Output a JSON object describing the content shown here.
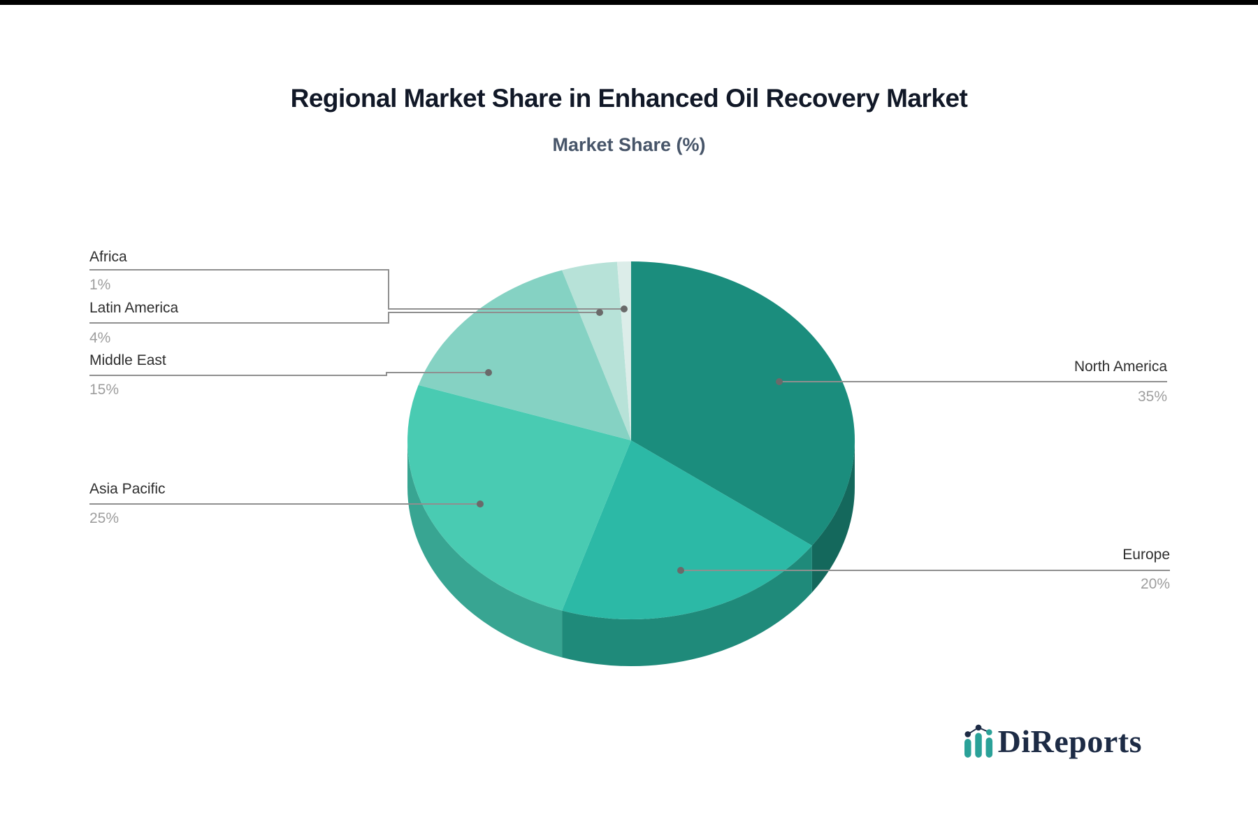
{
  "page": {
    "title": "Regional Market Share in Enhanced Oil Recovery Market",
    "subtitle": "Market Share (%)"
  },
  "chart_data": {
    "type": "pie",
    "style": "3d",
    "title": "Regional Market Share in Enhanced Oil Recovery Market",
    "subtitle": "Market Share (%)",
    "unit": "%",
    "start_angle_deg": 90,
    "direction": "clockwise",
    "slices": [
      {
        "label": "North America",
        "value": 35,
        "color": "#1b8d7d",
        "side_color": "#14685c",
        "label_side": "right"
      },
      {
        "label": "Europe",
        "value": 20,
        "color": "#2cb9a6",
        "side_color": "#1f8a7a",
        "label_side": "right"
      },
      {
        "label": "Asia Pacific",
        "value": 25,
        "color": "#49cbb2",
        "side_color": "#38a592",
        "label_side": "left"
      },
      {
        "label": "Middle East",
        "value": 15,
        "color": "#85d2c3",
        "side_color": "#85d2c3",
        "label_side": "left"
      },
      {
        "label": "Latin America",
        "value": 4,
        "color": "#b7e2d8",
        "side_color": "#b7e2d8",
        "label_side": "left"
      },
      {
        "label": "Africa",
        "value": 1,
        "color": "#dcede9",
        "side_color": "#dcede9",
        "label_side": "left"
      }
    ]
  },
  "callouts": {
    "africa": {
      "name": "Africa",
      "pct": "1%"
    },
    "latin_america": {
      "name": "Latin America",
      "pct": "4%"
    },
    "middle_east": {
      "name": "Middle East",
      "pct": "15%"
    },
    "asia_pacific": {
      "name": "Asia Pacific",
      "pct": "25%"
    },
    "north_america": {
      "name": "North America",
      "pct": "35%"
    },
    "europe": {
      "name": "Europe",
      "pct": "20%"
    }
  },
  "logo": {
    "text": "DiReports",
    "icon": "mini-bar-chart-icon",
    "bar_color": "#2aa198",
    "text_color": "#1d2b45"
  }
}
